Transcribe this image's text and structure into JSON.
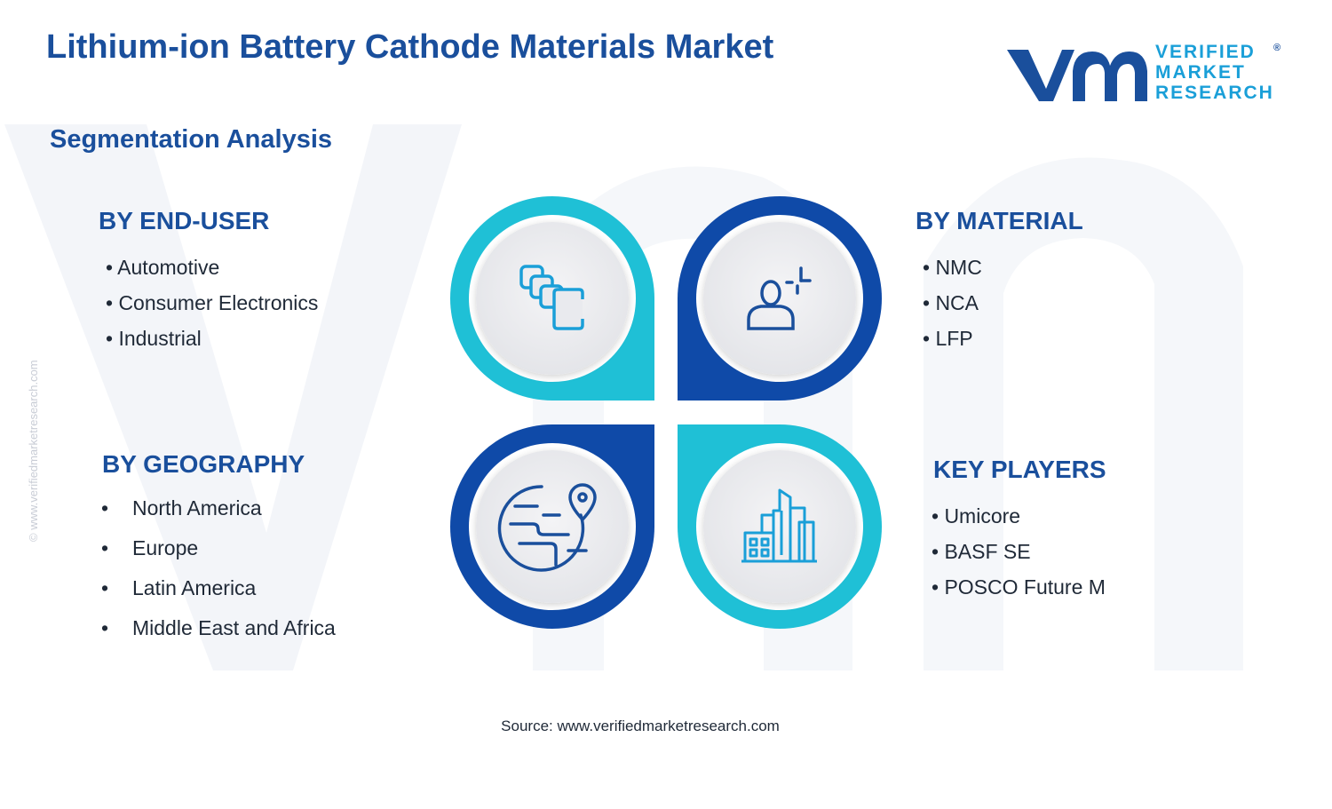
{
  "header": {
    "title": "Lithium-ion Battery Cathode Materials Market",
    "subtitle": "Segmentation Analysis"
  },
  "logo": {
    "line1": "VERIFIED",
    "line2": "MARKET",
    "line3": "RESEARCH",
    "registered": "®"
  },
  "watermark_side": "© www.verifiedmarketresearch.com",
  "segments": {
    "end_user": {
      "title": "BY END-USER",
      "items": [
        "• Automotive",
        "• Consumer Electronics",
        "• Industrial"
      ],
      "icon": "blocks-icon"
    },
    "material": {
      "title": "BY MATERIAL",
      "items": [
        "• NMC",
        "• NCA",
        "• LFP"
      ],
      "icon": "person-gear-icon"
    },
    "geography": {
      "title": "BY GEOGRAPHY",
      "bullet": "•",
      "items": [
        "North America",
        "Europe",
        "Latin America",
        "Middle East and Africa"
      ],
      "icon": "globe-pin-icon"
    },
    "key_players": {
      "title": "KEY PLAYERS",
      "items": [
        "• Umicore",
        "• BASF SE",
        "• POSCO Future M"
      ],
      "icon": "buildings-icon"
    }
  },
  "colors": {
    "navy": "#1a4f9c",
    "cyan": "#1fc0d6",
    "dark_blue": "#0f4aa8",
    "icon": "#1a9fd8"
  },
  "footer": {
    "source": "Source: www.verifiedmarketresearch.com"
  }
}
